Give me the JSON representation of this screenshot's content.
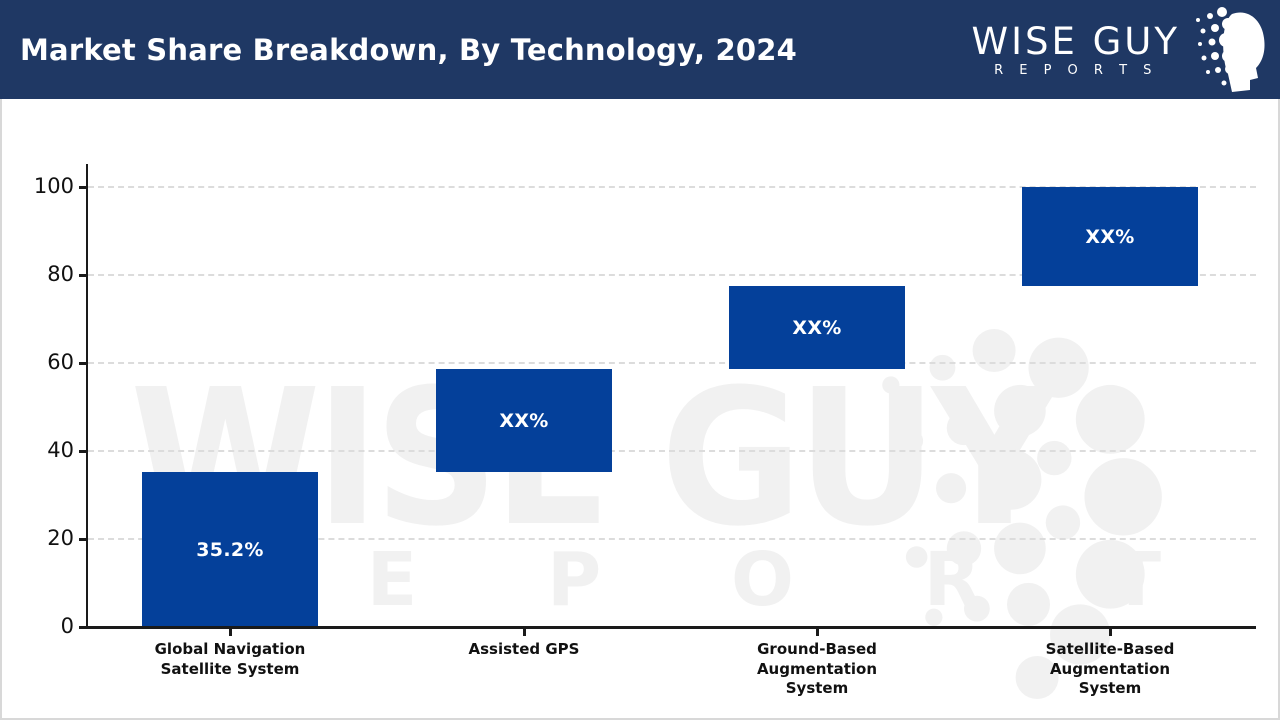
{
  "header": {
    "title": "Market Share Breakdown, By Technology, 2024",
    "logo": {
      "name": "WISE GUY",
      "subtitle": "R E P O R T S"
    }
  },
  "watermark": {
    "line1": "WISE GUY",
    "line2": "R E P O R T S"
  },
  "colors": {
    "header_bg": "#1f3864",
    "bar": "#04409a",
    "axis": "#1a1a1a",
    "grid": "#dcdcdc",
    "bar_label": "#ffffff",
    "watermark": "#f1f1f1"
  },
  "chart_data": {
    "type": "bar",
    "subtype": "waterfall",
    "title": "Market Share Breakdown, By Technology, 2024",
    "unit": "%",
    "categories": [
      "Global Navigation Satellite System",
      "Assisted GPS",
      "Ground-Based Augmentation System",
      "Satellite-Based Augmentation System"
    ],
    "category_lines": [
      [
        "Global Navigation",
        "Satellite System"
      ],
      [
        "Assisted GPS"
      ],
      [
        "Ground-Based",
        "Augmentation",
        "System"
      ],
      [
        "Satellite-Based",
        "Augmentation",
        "System"
      ]
    ],
    "segments": [
      {
        "category": "Global Navigation Satellite System",
        "start": 0,
        "end": 35.2,
        "label": "35.2%"
      },
      {
        "category": "Assisted GPS",
        "start": 35.2,
        "end": 58.6,
        "label": "XX%"
      },
      {
        "category": "Ground-Based Augmentation System",
        "start": 58.6,
        "end": 77.5,
        "label": "XX%"
      },
      {
        "category": "Satellite-Based Augmentation System",
        "start": 77.5,
        "end": 100,
        "label": "XX%"
      }
    ],
    "values": [
      35.2,
      23.4,
      18.9,
      22.5
    ],
    "ylim": [
      0,
      100
    ],
    "yticks": [
      0,
      20,
      40,
      60,
      80,
      100
    ],
    "grid": "horizontal-dashed",
    "legend": "none"
  }
}
